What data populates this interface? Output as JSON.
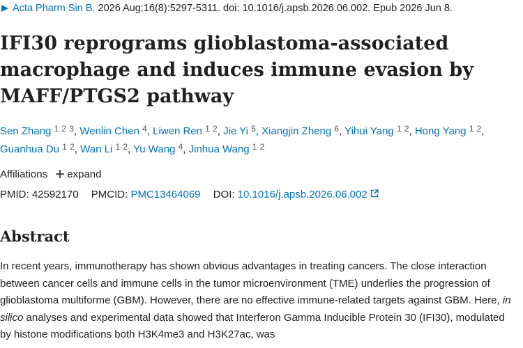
{
  "citation": {
    "journal": "Acta Pharm Sin B.",
    "details": "2026 Aug;16(8):5297-5311. doi: 10.1016/j.apsb.2026.06.002. Epub 2026 Jun 8."
  },
  "title": "IFI30 reprograms glioblastoma-associated macrophage and induces immune evasion by MAFF/PTGS2 pathway",
  "authors": [
    {
      "name": "Sen Zhang",
      "affiliations": [
        "1",
        "2",
        "3"
      ],
      "separator": ","
    },
    {
      "name": "Wenlin Chen",
      "affiliations": [
        "4"
      ],
      "separator": ","
    },
    {
      "name": "Liwen Ren",
      "affiliations": [
        "1",
        "2"
      ],
      "separator": ","
    },
    {
      "name": "Jie Yi",
      "affiliations": [
        "5"
      ],
      "separator": ","
    },
    {
      "name": "Xiangjin Zheng",
      "affiliations": [
        "6"
      ],
      "separator": ","
    },
    {
      "name": "Yihui Yang",
      "affiliations": [
        "1",
        "2"
      ],
      "separator": ","
    },
    {
      "name": "Hong Yang",
      "affiliations": [
        "1",
        "2"
      ],
      "separator": ","
    },
    {
      "name": "Guanhua Du",
      "affiliations": [
        "1",
        "2"
      ],
      "separator": ","
    },
    {
      "name": "Wan Li",
      "affiliations": [
        "1",
        "2"
      ],
      "separator": ","
    },
    {
      "name": "Yu Wang",
      "affiliations": [
        "4"
      ],
      "separator": ","
    },
    {
      "name": "Jinhua Wang",
      "affiliations": [
        "1",
        "2"
      ]
    }
  ],
  "affiliations": {
    "label": "Affiliations",
    "expand": "expand"
  },
  "identifiers": {
    "pmid_label": "PMID:",
    "pmid": "42592170",
    "pmcid_label": "PMCID:",
    "pmcid": "PMC13464069",
    "doi_label": "DOI:",
    "doi": "10.1016/j.apsb.2026.06.002"
  },
  "abstract": {
    "heading": "Abstract",
    "text_before": "In recent years, immunotherapy has shown obvious advantages in treating cancers. The close interaction between cancer cells and immune cells in the tumor microenvironment (TME) underlies the progression of glioblastoma multiforme (GBM). However, there are no effective immune-related targets against GBM. Here, ",
    "emphasis": "in silico",
    "text_after": " analyses and experimental data showed that Interferon Gamma Inducible Protein 30 (IFI30), modulated by histone modifications both H3K4me3 and H3K27ac, was"
  }
}
